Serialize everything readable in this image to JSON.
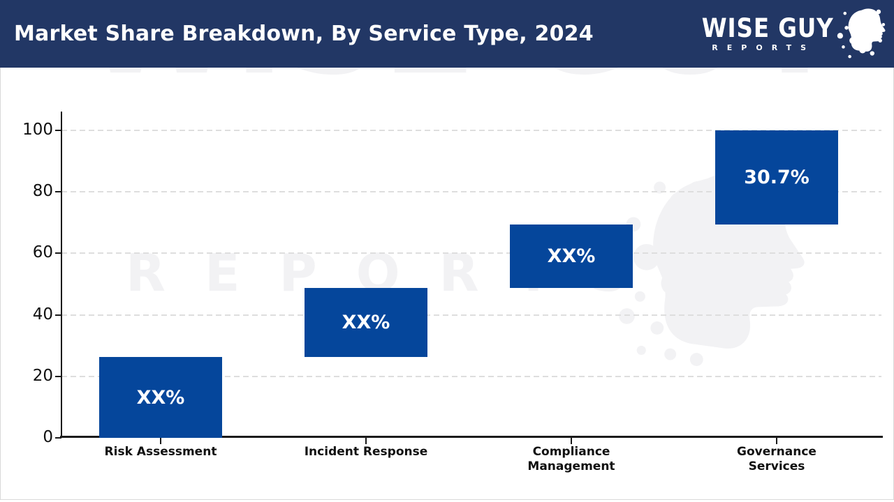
{
  "header": {
    "title": "Market Share Breakdown, By Service Type, 2024",
    "logo": {
      "wordmark": "WISE GUY",
      "subtext": "REPORTS"
    },
    "bg_color": "#223765"
  },
  "watermark": {
    "line1": "WISE GUY",
    "line2": "REPORTS"
  },
  "chart_data": {
    "type": "bar",
    "subtype": "waterfall-floating-bars",
    "title": "Market Share Breakdown, By Service Type, 2024",
    "categories": [
      "Risk Assessment",
      "Incident Response",
      "Compliance Management",
      "Governance Services"
    ],
    "category_labels": [
      "Risk Assessment",
      "Incident Response",
      "Compliance\nManagement",
      "Governance\nServices"
    ],
    "series": [
      {
        "name": "Market share (%)",
        "ranges": [
          [
            0,
            26.3
          ],
          [
            26.3,
            48.8
          ],
          [
            48.8,
            69.3
          ],
          [
            69.3,
            100
          ]
        ]
      }
    ],
    "bar_labels": [
      "XX%",
      "XX%",
      "XX%",
      "30.7%"
    ],
    "xlabel": "",
    "ylabel": "",
    "ylim": [
      0,
      100
    ],
    "yticks": [
      0,
      20,
      40,
      60,
      80,
      100
    ],
    "grid": "horizontal-dashed",
    "legend": "none",
    "bar_color": "#05469b",
    "bar_label_color": "#ffffff",
    "axis_color": "#1a1a1a",
    "gridline_color": "#dedede"
  }
}
